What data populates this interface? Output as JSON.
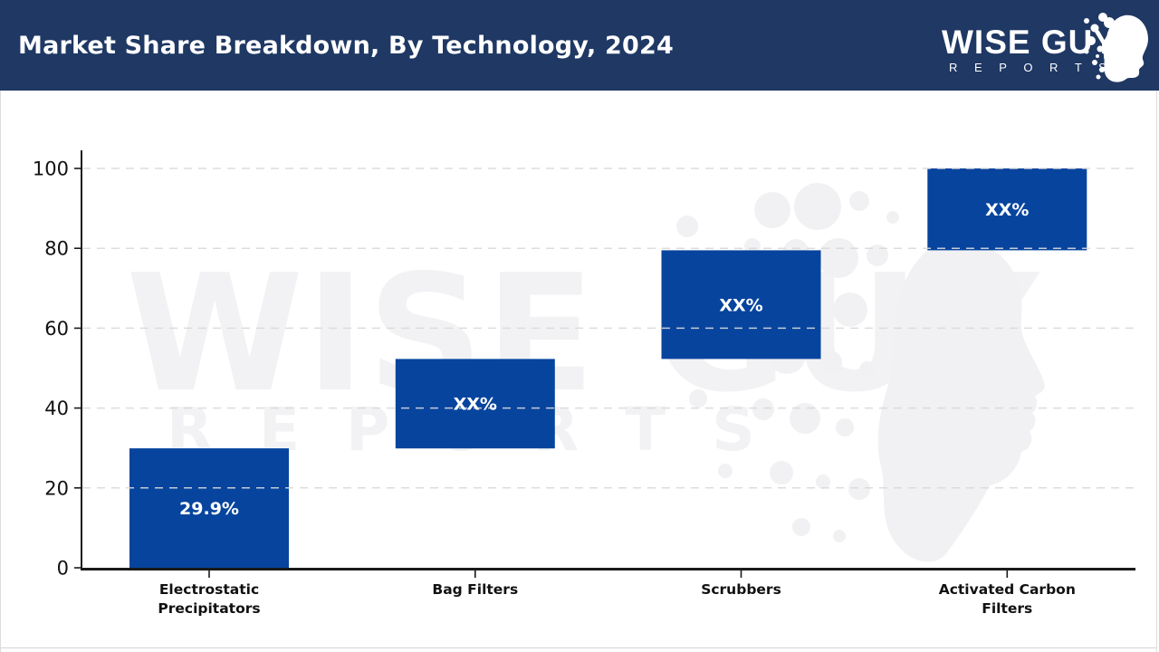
{
  "header": {
    "title": "Market Share Breakdown, By Technology, 2024",
    "bg_color": "#1F3864",
    "logo": {
      "line1": "WISE GUY",
      "line2": "R E P O R T S"
    }
  },
  "watermark": {
    "line1": "WISE GUY",
    "line2": "R E P O R T S"
  },
  "chart_data": {
    "type": "bar",
    "subtype": "waterfall",
    "title": "Market Share Breakdown, By Technology, 2024",
    "categories": [
      "Electrostatic Precipitators",
      "Bag Filters",
      "Scrubbers",
      "Activated Carbon Filters"
    ],
    "category_lines": [
      [
        "Electrostatic",
        "Precipitators"
      ],
      [
        "Bag Filters"
      ],
      [
        "Scrubbers"
      ],
      [
        "Activated Carbon",
        "Filters"
      ]
    ],
    "segments": [
      {
        "category": "Electrostatic Precipitators",
        "start": 0,
        "end": 29.9,
        "label": "29.9%"
      },
      {
        "category": "Bag Filters",
        "start": 29.9,
        "end": 52.3,
        "label": "XX%"
      },
      {
        "category": "Scrubbers",
        "start": 52.3,
        "end": 79.5,
        "label": "XX%"
      },
      {
        "category": "Activated Carbon Filters",
        "start": 79.5,
        "end": 100,
        "label": "XX%"
      }
    ],
    "ylim": [
      0,
      100
    ],
    "yticks": [
      0,
      20,
      40,
      60,
      80,
      100
    ],
    "xlabel": "",
    "ylabel": "",
    "grid": "horizontal-dashed",
    "legend": "none",
    "bar_color": "#07449E",
    "bar_label_color": "#FFFFFF",
    "axis_color": "#1A1A1A",
    "gridline_color": "#D9D9D9",
    "tick_label_color": "#111111"
  }
}
